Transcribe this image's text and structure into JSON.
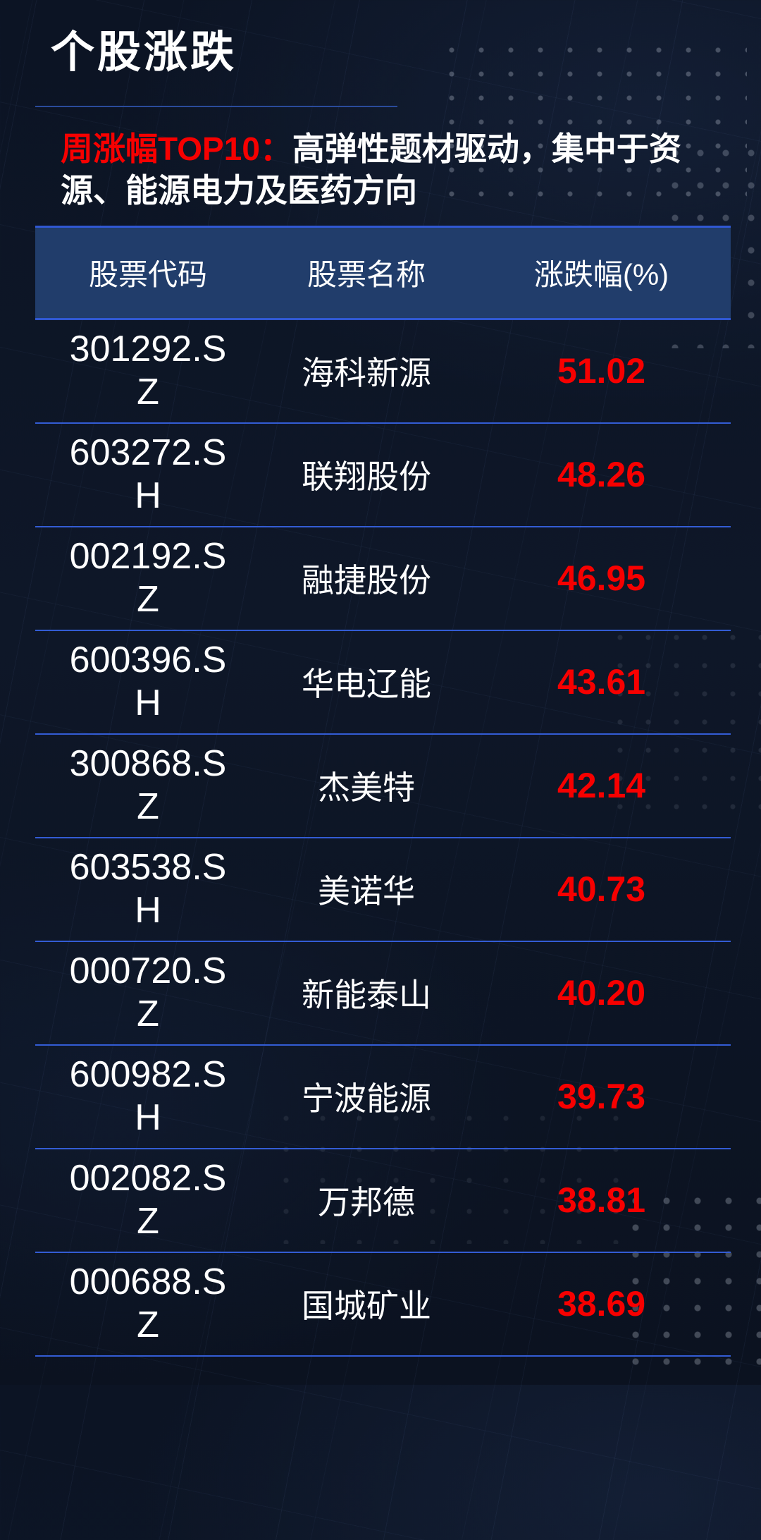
{
  "page": {
    "title": "个股涨跌",
    "subtitle_highlight": "周涨幅TOP10：",
    "subtitle_rest": "高弹性题材驱动，集中于资源、能源电力及医药方向"
  },
  "chart_data": {
    "type": "table",
    "title": "个股涨跌",
    "subtitle": "周涨幅TOP10：高弹性题材驱动，集中于资源、能源电力及医药方向",
    "columns": [
      "股票代码",
      "股票名称",
      "涨跌幅(%)"
    ],
    "rows": [
      {
        "code": "301292.SZ",
        "name": "海科新源",
        "change_pct": "51.02"
      },
      {
        "code": "603272.SH",
        "name": "联翔股份",
        "change_pct": "48.26"
      },
      {
        "code": "002192.SZ",
        "name": "融捷股份",
        "change_pct": "46.95"
      },
      {
        "code": "600396.SH",
        "name": "华电辽能",
        "change_pct": "43.61"
      },
      {
        "code": "300868.SZ",
        "name": "杰美特",
        "change_pct": "42.14"
      },
      {
        "code": "603538.SH",
        "name": "美诺华",
        "change_pct": "40.73"
      },
      {
        "code": "000720.SZ",
        "name": "新能泰山",
        "change_pct": "40.20"
      },
      {
        "code": "600982.SH",
        "name": "宁波能源",
        "change_pct": "39.73"
      },
      {
        "code": "002082.SZ",
        "name": "万邦德",
        "change_pct": "38.81"
      },
      {
        "code": "000688.SZ",
        "name": "国城矿业",
        "change_pct": "38.69"
      }
    ]
  },
  "colors": {
    "background": "#0c1424",
    "header_bg": "#213d6b",
    "row_border_blue": "#335cd4",
    "accent_red": "#f70000",
    "text_white": "#ffffff",
    "title_underline": "#2a4b9b"
  }
}
